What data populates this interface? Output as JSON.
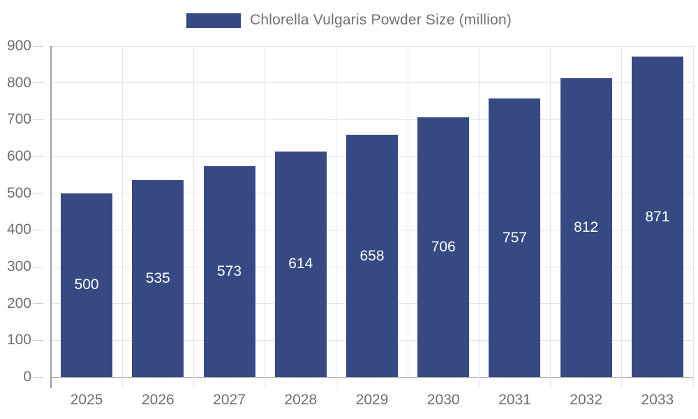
{
  "chart_data": {
    "type": "bar",
    "title": "Chlorella Vulgaris Powder Size (million)",
    "categories": [
      "2025",
      "2026",
      "2027",
      "2028",
      "2029",
      "2030",
      "2031",
      "2032",
      "2033"
    ],
    "values": [
      500,
      535,
      573,
      614,
      658,
      706,
      757,
      812,
      871
    ],
    "xlabel": "",
    "ylabel": "",
    "ylim": [
      0,
      900
    ],
    "yticks": [
      0,
      100,
      200,
      300,
      400,
      500,
      600,
      700,
      800,
      900
    ],
    "grid": true,
    "legend_position": "top-center",
    "bar_labels_inside": "centered",
    "colors": {
      "bar": "#364983",
      "bar_label": "#ffffff",
      "axis_text": "#6f6f6f",
      "legend_text": "#6f6f6f",
      "gridline": "#e4e4e4",
      "baseline": "#b3b3b3",
      "axis_line": "#9c9c9c",
      "tick": "#cfcfcf",
      "background": "#ffffff"
    }
  }
}
